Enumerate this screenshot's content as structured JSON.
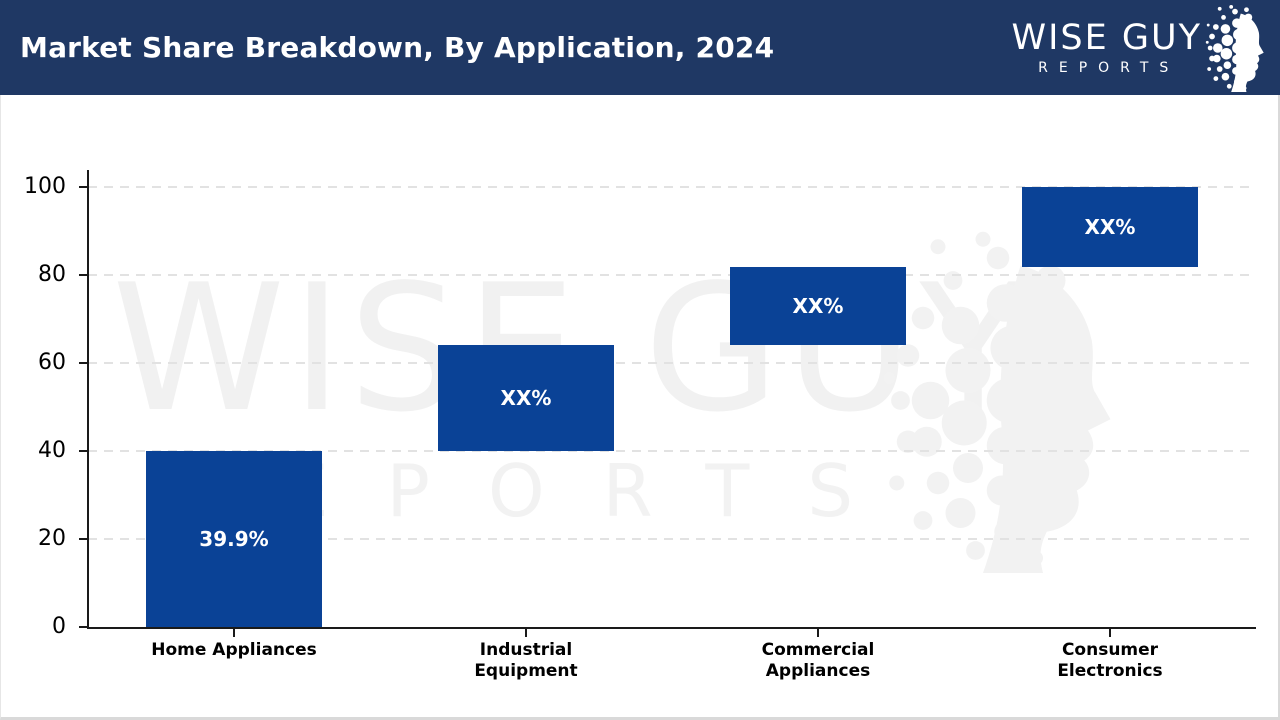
{
  "header": {
    "title": "Market Share Breakdown, By Application, 2024",
    "logo": {
      "line1": "WISE GUY",
      "line2": "REPORTS"
    },
    "bg_color": "#1f3864"
  },
  "watermark": {
    "line1": "WISE GUY",
    "line2": "REPORTS"
  },
  "chart_data": {
    "type": "bar",
    "variant": "waterfall",
    "title": "Market Share Breakdown, By Application, 2024",
    "categories": [
      "Home Appliances",
      "Industrial\nEquipment",
      "Commercial\nAppliances",
      "Consumer\nElectronics"
    ],
    "series": [
      {
        "name": "Market Share",
        "values": [
          39.9,
          24.3,
          17.6,
          18.2
        ]
      }
    ],
    "cumulative_tops": [
      39.9,
      64.2,
      81.8,
      100
    ],
    "bar_labels": [
      "39.9%",
      "XX%",
      "XX%",
      "XX%"
    ],
    "xlabel": "",
    "ylabel": "",
    "ylim": [
      0,
      100
    ],
    "yticks": [
      0,
      20,
      40,
      60,
      80,
      100
    ],
    "grid": "horizontal-dashed",
    "legend": "none",
    "bar_color": "#0a4296",
    "bar_label_color": "#ffffff",
    "axis_color": "#1a1a1a",
    "gridline_color": "#e2e2e2"
  }
}
